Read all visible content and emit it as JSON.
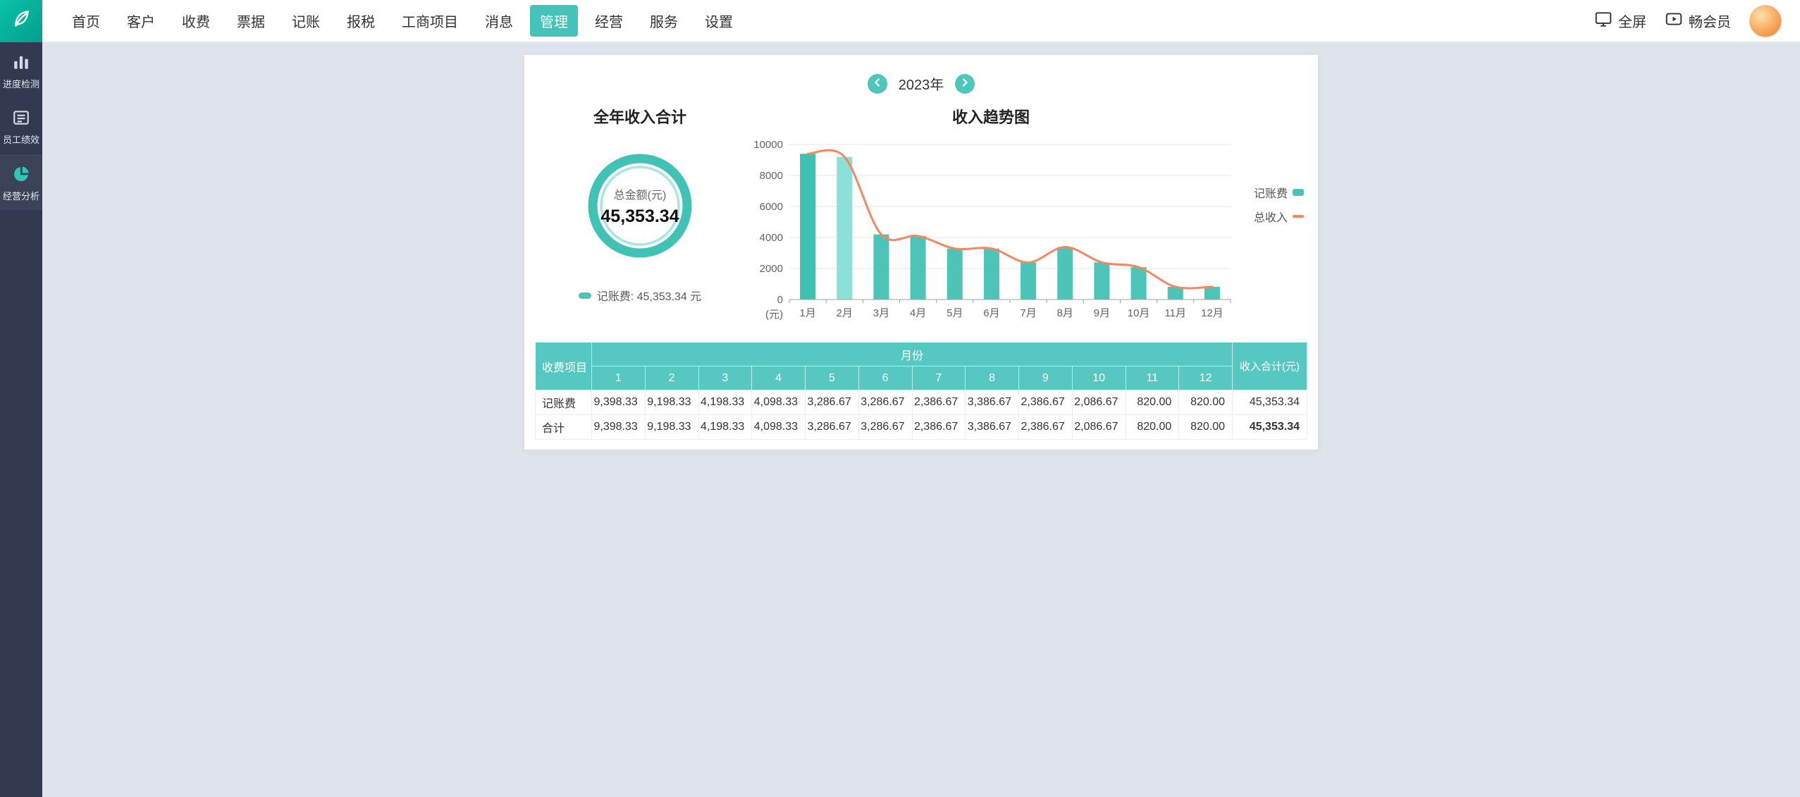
{
  "topbar": {
    "nav": [
      {
        "name": "home",
        "label": "首页",
        "active": false
      },
      {
        "name": "customers",
        "label": "客户",
        "active": false
      },
      {
        "name": "fees",
        "label": "收费",
        "active": false
      },
      {
        "name": "invoices",
        "label": "票据",
        "active": false
      },
      {
        "name": "bookkeeping",
        "label": "记账",
        "active": false
      },
      {
        "name": "tax-filing",
        "label": "报税",
        "active": false
      },
      {
        "name": "business-projects",
        "label": "工商项目",
        "active": false
      },
      {
        "name": "messages",
        "label": "消息",
        "active": false
      },
      {
        "name": "management",
        "label": "管理",
        "active": true
      },
      {
        "name": "operations",
        "label": "经营",
        "active": false
      },
      {
        "name": "services",
        "label": "服务",
        "active": false
      },
      {
        "name": "settings",
        "label": "设置",
        "active": false
      }
    ],
    "fullscreen_label": "全屏",
    "member_label": "畅会员"
  },
  "sidebar": {
    "items": [
      {
        "name": "progress-check",
        "label": "进度检测",
        "icon": "bar-chart-icon",
        "active": false
      },
      {
        "name": "staff-performance",
        "label": "员工绩效",
        "icon": "id-card-icon",
        "active": false
      },
      {
        "name": "business-analysis",
        "label": "经营分析",
        "icon": "pie-chart-icon",
        "active": true
      }
    ]
  },
  "panel": {
    "year": "2023年",
    "summary": {
      "title": "全年收入合计",
      "donut_label": "总金额(元)",
      "donut_value": "45,353.34",
      "legend_text": "记账费: 45,353.34 元"
    },
    "trend": {
      "title": "收入趋势图",
      "legend": [
        {
          "label": "记账费",
          "type": "bar",
          "color": "#4cc5b8"
        },
        {
          "label": "总收入",
          "type": "line",
          "color": "#f5875f"
        }
      ]
    },
    "table": {
      "corner": "收费项目",
      "group_header": "月份",
      "total_header": "收入合计(元)",
      "months": [
        "1",
        "2",
        "3",
        "4",
        "5",
        "6",
        "7",
        "8",
        "9",
        "10",
        "11",
        "12"
      ],
      "rows": [
        {
          "name": "记账费",
          "values": [
            "9,398.33",
            "9,198.33",
            "4,198.33",
            "4,098.33",
            "3,286.67",
            "3,286.67",
            "2,386.67",
            "3,386.67",
            "2,386.67",
            "2,086.67",
            "820.00",
            "820.00"
          ],
          "total": "45,353.34",
          "bold_total": false
        },
        {
          "name": "合计",
          "values": [
            "9,398.33",
            "9,198.33",
            "4,198.33",
            "4,098.33",
            "3,286.67",
            "3,286.67",
            "2,386.67",
            "3,386.67",
            "2,386.67",
            "2,086.67",
            "820.00",
            "820.00"
          ],
          "total": "45,353.34",
          "bold_total": true
        }
      ]
    }
  },
  "chart_data": {
    "type": "bar",
    "title": "收入趋势图",
    "categories": [
      "1月",
      "2月",
      "3月",
      "4月",
      "5月",
      "6月",
      "7月",
      "8月",
      "9月",
      "10月",
      "11月",
      "12月"
    ],
    "series": [
      {
        "name": "记账费",
        "type": "bar",
        "color": "#4cc5b8",
        "values": [
          9398.33,
          9198.33,
          4198.33,
          4098.33,
          3286.67,
          3286.67,
          2386.67,
          3386.67,
          2386.67,
          2086.67,
          820.0,
          820.0
        ]
      },
      {
        "name": "总收入",
        "type": "line",
        "color": "#f5875f",
        "values": [
          9398.33,
          9198.33,
          4198.33,
          4098.33,
          3286.67,
          3286.67,
          2386.67,
          3386.67,
          2386.67,
          2086.67,
          820.0,
          820.0
        ]
      }
    ],
    "bar_colors": [
      "#3ec1b3",
      "#8ce0d8",
      "#4cc5b8",
      "#4cc5b8",
      "#4cc5b8",
      "#4cc5b8",
      "#4cc5b8",
      "#4cc5b8",
      "#4cc5b8",
      "#4cc5b8",
      "#4cc5b8",
      "#4cc5b8"
    ],
    "ylim": [
      0,
      10000
    ],
    "ytick": 2000,
    "y_unit": "(元)",
    "xlabel": "",
    "ylabel": "",
    "grid": true,
    "legend_position": "right"
  },
  "colors": {
    "accent": "#45c2b9",
    "line": "#f5875f",
    "table_header": "#57c7c2",
    "sidebar_bg": "#323950",
    "main_bg": "#dfe4ec"
  }
}
